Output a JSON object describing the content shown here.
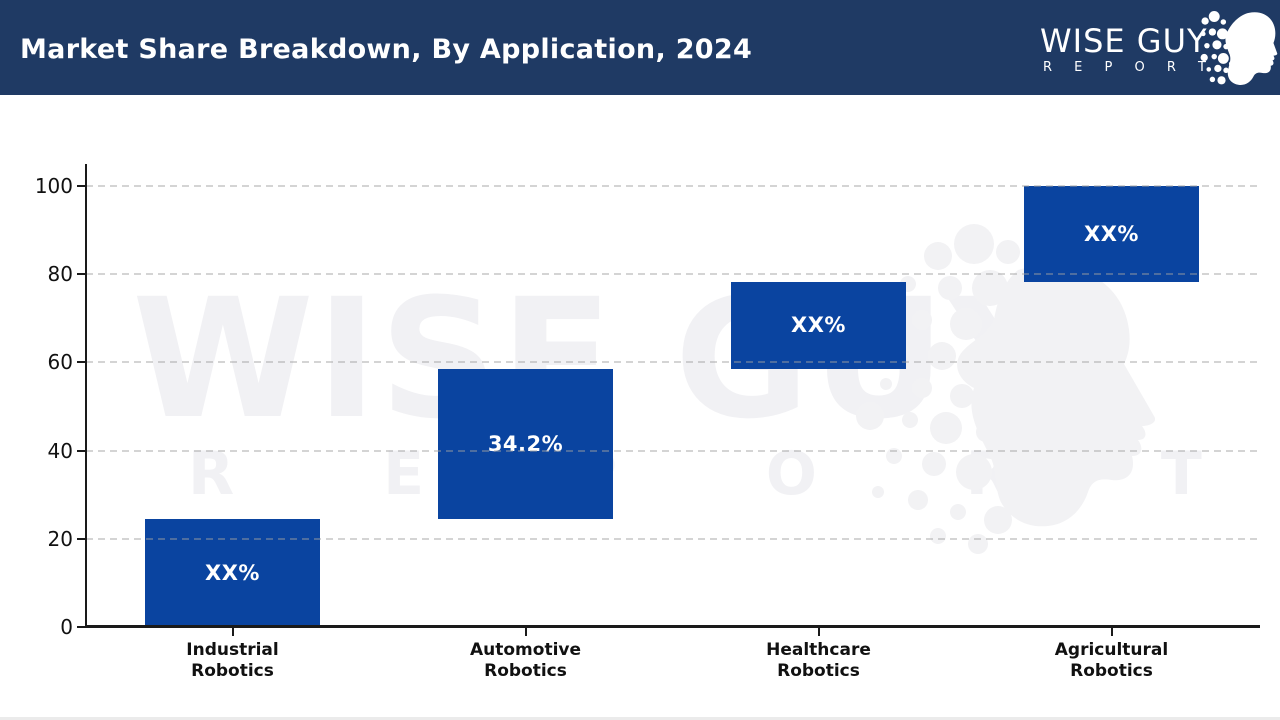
{
  "header": {
    "title": "Market Share Breakdown, By Application, 2024",
    "logo": {
      "brand_text": "WISE GUY",
      "reports_text": "R E P O R T S",
      "face_icon": "face-profile-dots-icon"
    }
  },
  "watermark": {
    "main_text": "WISE GUY",
    "reports_text": "R E P O R T S",
    "face_icon": "face-profile-dots-icon"
  },
  "colors": {
    "header_bg": "#1f3a64",
    "bar": "#0a44a0",
    "axis": "#1a1a1a",
    "grid": "#a0a0a073",
    "watermark": "#f1f1f4",
    "text": "#111111",
    "white": "#ffffff",
    "bottom_strip": "#ebebeb"
  },
  "chart_data": {
    "type": "bar",
    "variant": "floating_waterfall",
    "title": "Market Share Breakdown, By Application, 2024",
    "categories": [
      "Industrial Robotics",
      "Automotive Robotics",
      "Healthcare Robotics",
      "Agricultural Robotics"
    ],
    "bars": [
      {
        "category": "Industrial Robotics",
        "start": 0,
        "end": 24.4,
        "value_label": "XX%"
      },
      {
        "category": "Automotive Robotics",
        "start": 24.4,
        "end": 58.6,
        "value_label": "34.2%"
      },
      {
        "category": "Healthcare Robotics",
        "start": 58.6,
        "end": 78.2,
        "value_label": "XX%"
      },
      {
        "category": "Agricultural Robotics",
        "start": 78.2,
        "end": 100,
        "value_label": "XX%"
      }
    ],
    "yticks": [
      0,
      20,
      40,
      60,
      80,
      100
    ],
    "ylim": [
      0,
      105
    ],
    "xlabel": "",
    "ylabel": "",
    "grid": "horizontal-dashed",
    "legend": "none",
    "bar_color": "#0a44a0",
    "bar_label_color": "#ffffff"
  }
}
